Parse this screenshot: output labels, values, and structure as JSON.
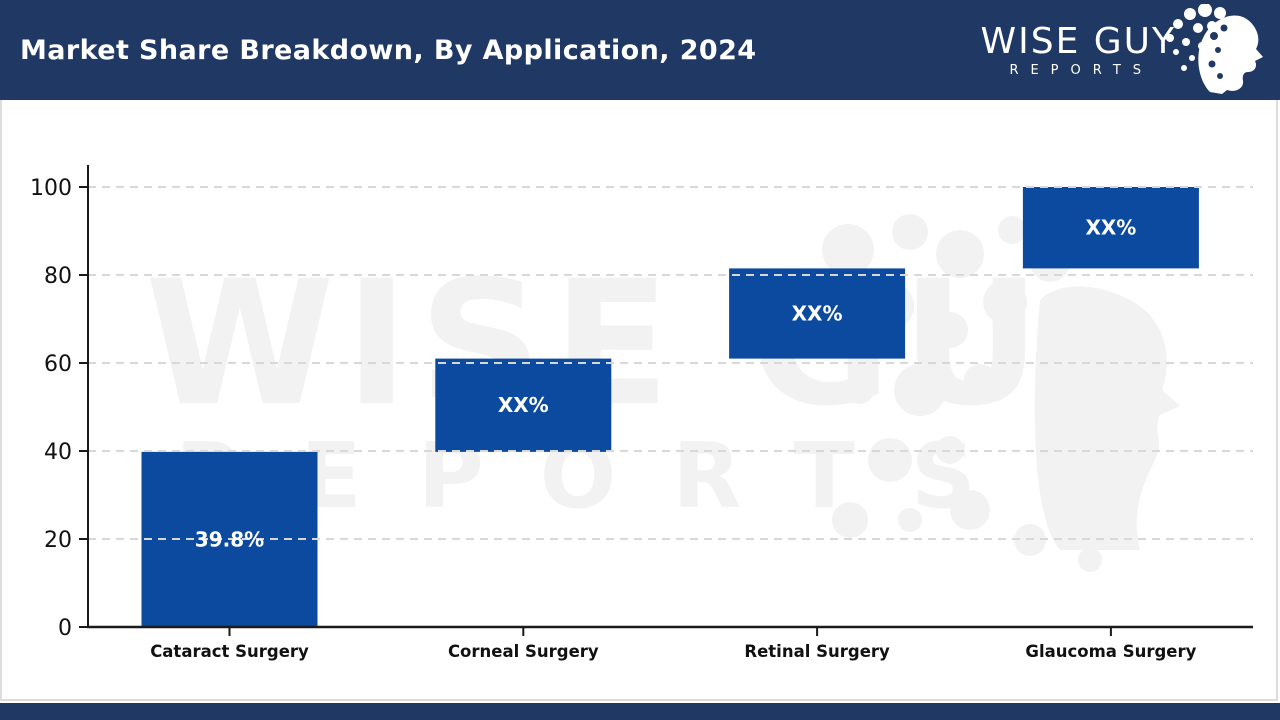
{
  "header": {
    "title": "Market Share Breakdown, By Application, 2024",
    "bg_color": "#1f3864",
    "logo": {
      "line1": "WISE GUY",
      "line2": "REPORTS"
    }
  },
  "watermark": {
    "line1": "WISE GU",
    "line2": "REPORTS"
  },
  "footer": {
    "bg_color": "#1f3864"
  },
  "chart_data": {
    "type": "bar",
    "subtype": "waterfall",
    "categories": [
      "Cataract Surgery",
      "Corneal Surgery",
      "Retinal Surgery",
      "Glaucoma Surgery"
    ],
    "series": [
      {
        "name": "Cataract Surgery",
        "start": 0,
        "end": 39.8,
        "label": "39.8%"
      },
      {
        "name": "Corneal Surgery",
        "start": 39.8,
        "end": 61,
        "label": "XX%"
      },
      {
        "name": "Retinal Surgery",
        "start": 61,
        "end": 81.5,
        "label": "XX%"
      },
      {
        "name": "Glaucoma Surgery",
        "start": 81.5,
        "end": 100,
        "label": "XX%"
      }
    ],
    "yticks": [
      0,
      20,
      40,
      60,
      80,
      100
    ],
    "ylim": [
      0,
      105
    ],
    "xlabel": "",
    "ylabel": "",
    "grid": "horizontal-dashed",
    "legend": "none",
    "bar_color": "#0b4a9f",
    "bar_label_color": "#ffffff",
    "axis_color": "#1a1a1a",
    "grid_color": "#d8d8d8",
    "tick_label_color": "#111111"
  }
}
